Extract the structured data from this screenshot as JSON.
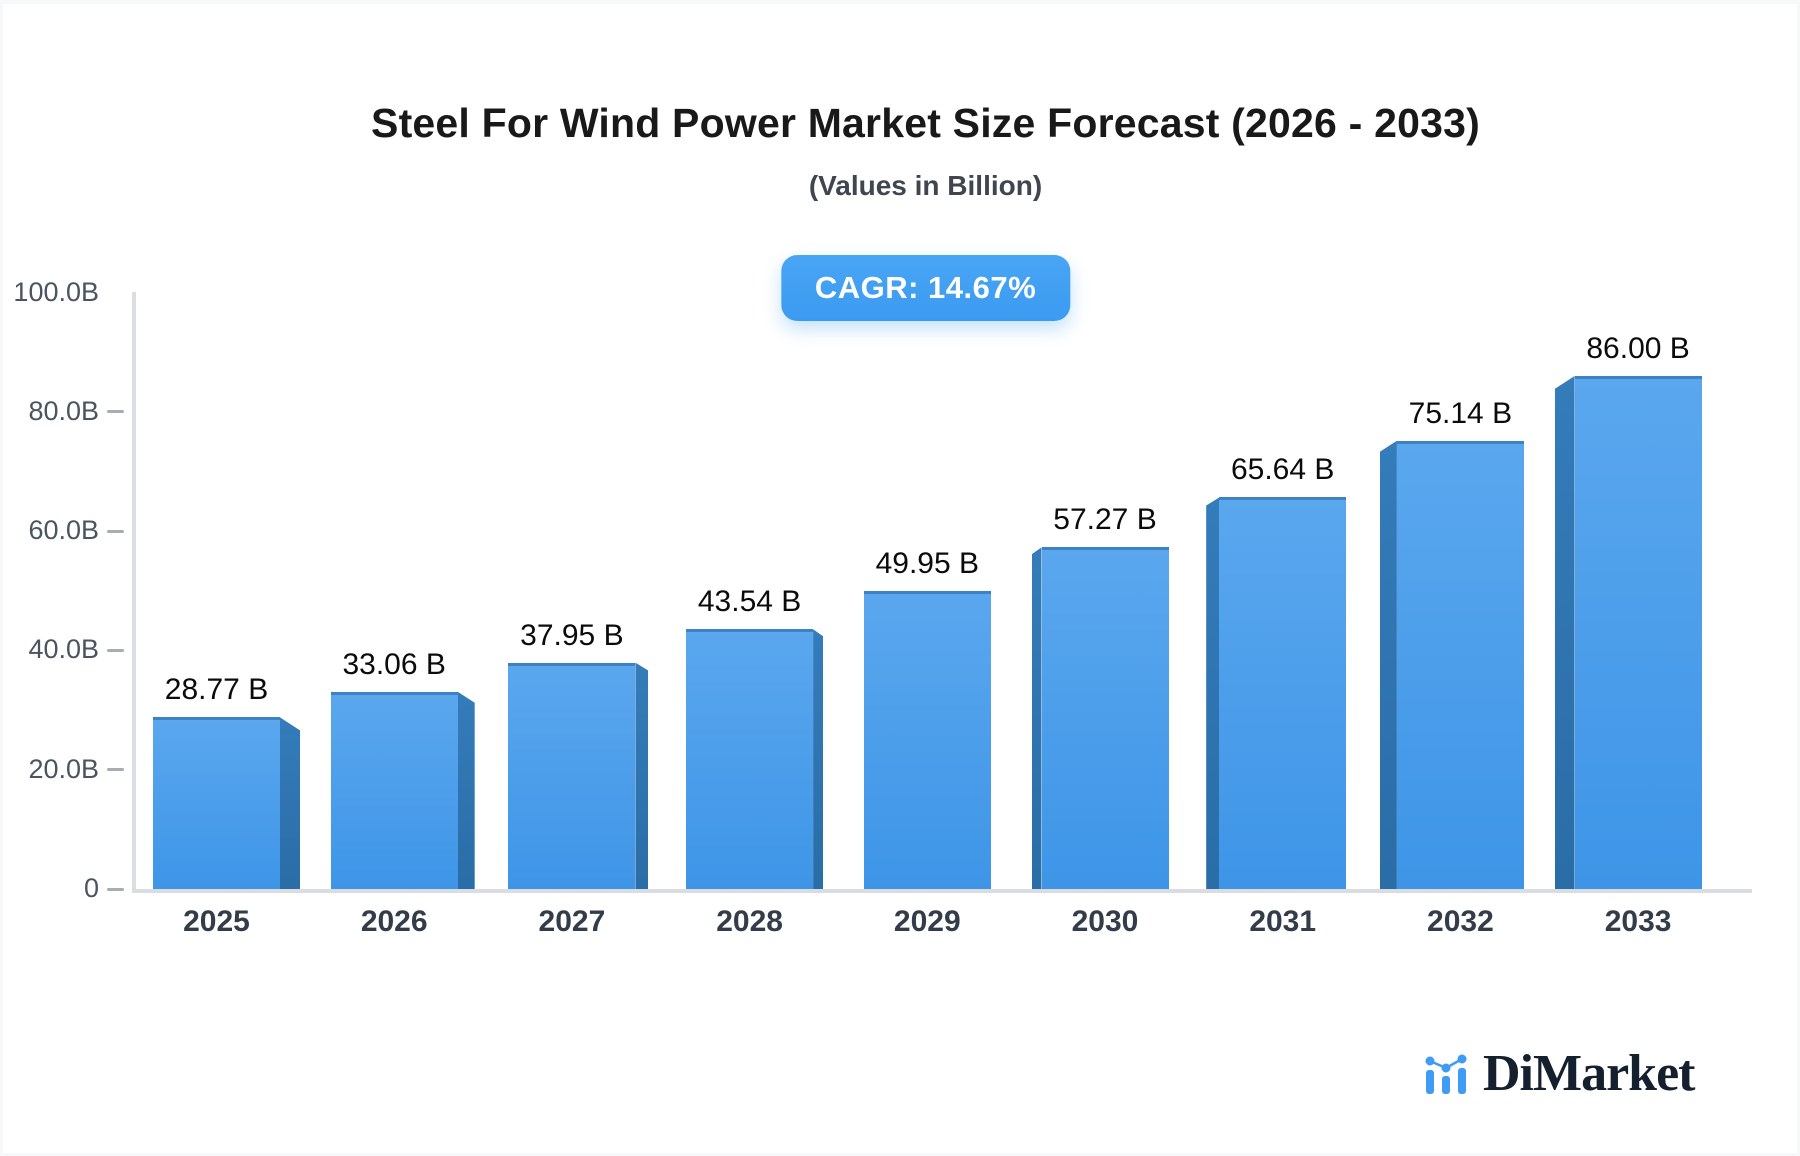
{
  "header": {
    "title": "Steel For Wind Power Market Size Forecast (2026 - 2033)",
    "subtitle": "(Values in Billion)",
    "cagr_badge": {
      "label": "CAGR: 14.67%",
      "background": "#3b9bf0",
      "text_color": "#ffffff"
    }
  },
  "chart_data": {
    "type": "bar",
    "title": "Steel For Wind Power Market Size Forecast (2026 - 2033)",
    "subtitle": "(Values in Billion)",
    "categories": [
      "2025",
      "2026",
      "2027",
      "2028",
      "2029",
      "2030",
      "2031",
      "2032",
      "2033"
    ],
    "values": [
      28.77,
      33.06,
      37.95,
      43.54,
      49.95,
      57.27,
      65.64,
      75.14,
      86.0
    ],
    "value_labels": [
      "28.77 B",
      "33.06 B",
      "37.95 B",
      "43.54 B",
      "49.95 B",
      "57.27 B",
      "65.64 B",
      "75.14 B",
      "86.00 B"
    ],
    "xlabel": "",
    "ylabel": "",
    "ylim": [
      0,
      100
    ],
    "y_ticks": [
      {
        "value": 0,
        "label": "0",
        "tick": true
      },
      {
        "value": 20,
        "label": "20.0B",
        "tick": true
      },
      {
        "value": 40,
        "label": "40.0B",
        "tick": true
      },
      {
        "value": 60,
        "label": "60.0B",
        "tick": true
      },
      {
        "value": 80,
        "label": "80.0B",
        "tick": true
      },
      {
        "value": 100,
        "label": "100.0B",
        "tick": false
      }
    ],
    "grid": false,
    "legend": false,
    "bar_style_3d": true,
    "colors": {
      "face_top": "#5aa7ee",
      "face_bottom": "#3e95e7",
      "face_top_edge": "#3d82c4",
      "side": "#347cba",
      "side_dark": "#2a6da7",
      "axis_line": "#dadde1"
    }
  },
  "footer": {
    "logo_text": "DiMarket",
    "logo_icon": "bar-chart-logo-icon",
    "logo_accent": "#3f9cf6"
  }
}
